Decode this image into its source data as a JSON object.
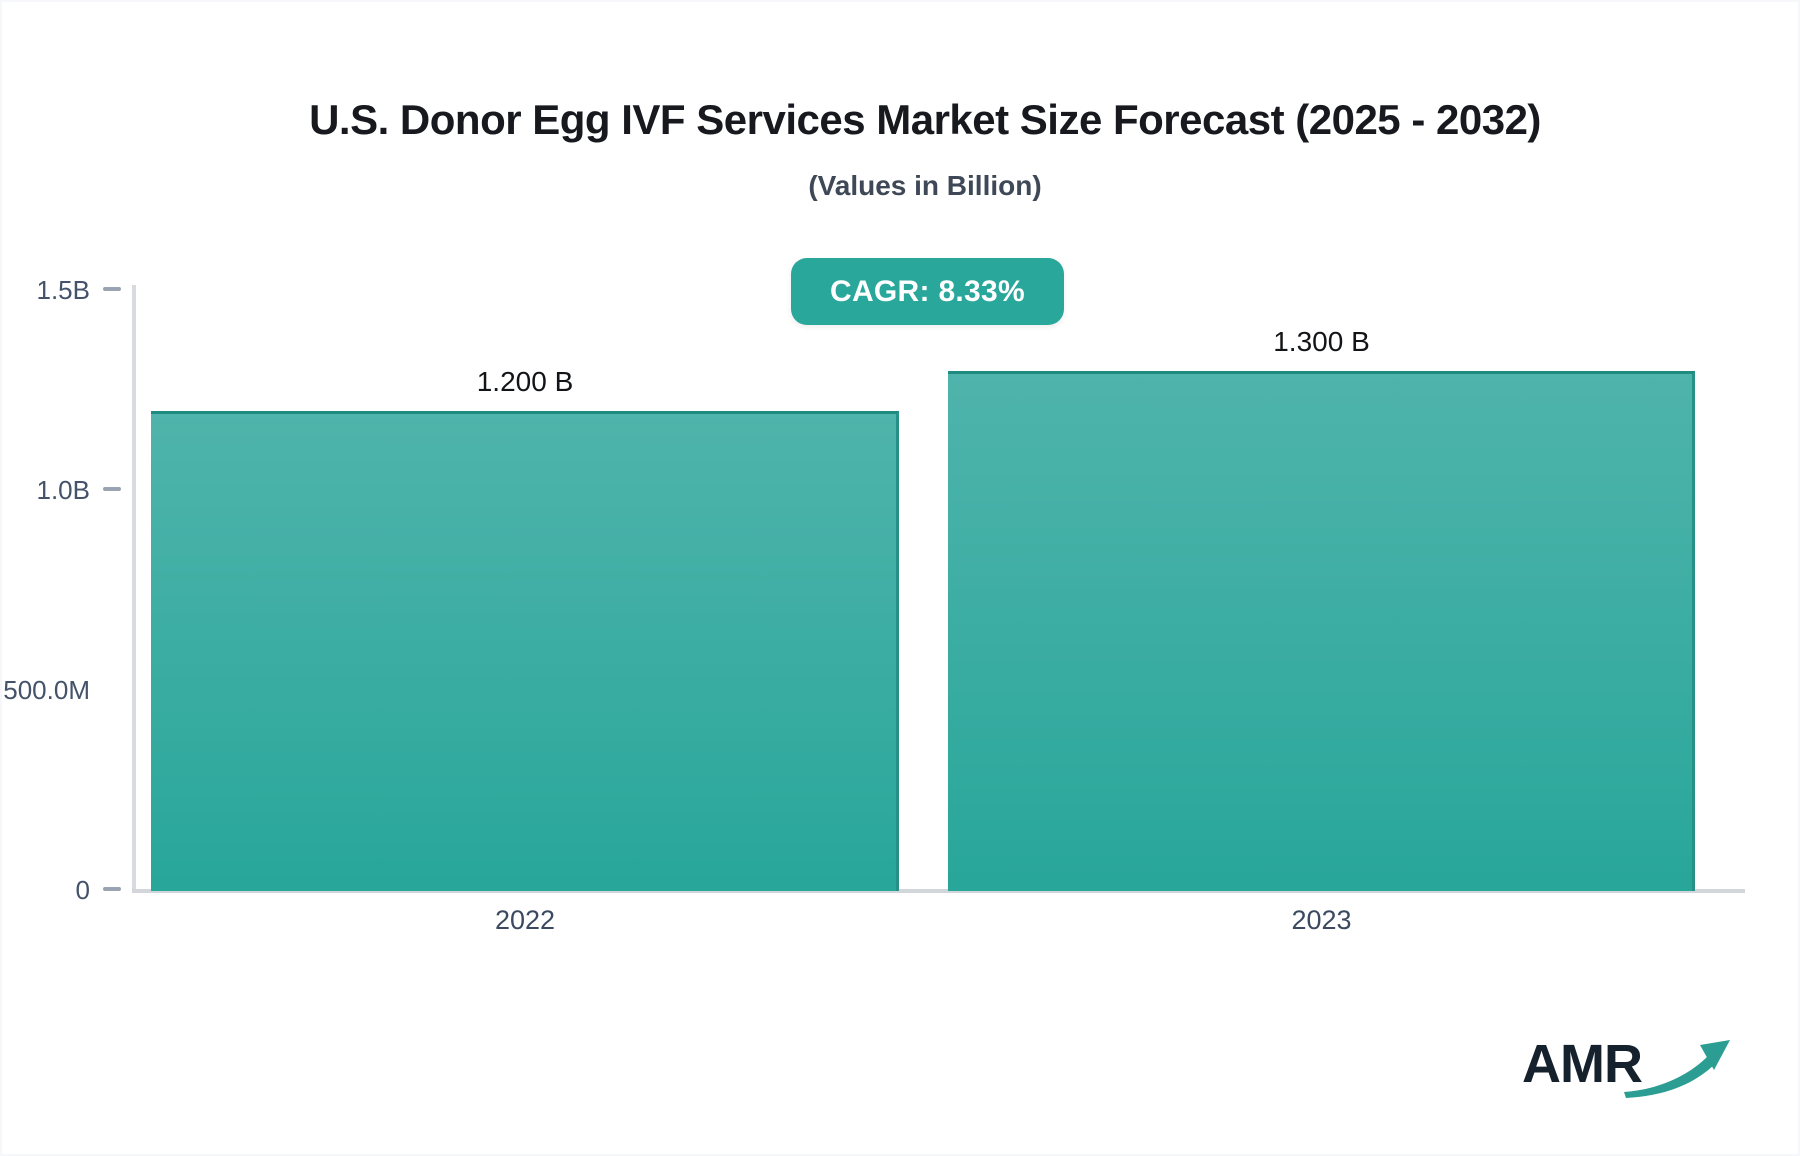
{
  "page": {
    "title": "U.S. Donor Egg IVF Services Market Size Forecast (2025 - 2032)",
    "subtitle": "(Values in Billion)",
    "cagr_badge": "CAGR: 8.33%",
    "brand": "AMR"
  },
  "colors": {
    "badge_bg": "#29a79b",
    "bar_gradient_top": "#4fb4ab",
    "bar_gradient_bottom": "#28a69a",
    "bar_border_dark": "#1f8b81",
    "axis_line": "#d5d9dd",
    "tick": "#9aa4b0",
    "axis_label": "#44536a",
    "category_label": "#3b4a61",
    "value_label": "#121417",
    "brand_navy": "#15222e",
    "brand_teal": "#2b9d92"
  },
  "chart_data": {
    "type": "bar",
    "title": "U.S. Donor Egg IVF Services Market Size Forecast (2025 - 2032)",
    "subtitle": "(Values in Billion)",
    "cagr_label": "CAGR: 8.33%",
    "categories": [
      "2022",
      "2023"
    ],
    "values": [
      1.2,
      1.3
    ],
    "value_unit": "B",
    "bar_labels": [
      "1.200 B",
      "1.300 B"
    ],
    "ylim": [
      0,
      1.5
    ],
    "yticks": [
      {
        "label": "0",
        "value": 0,
        "dash": true
      },
      {
        "label": "500.0M",
        "value": 0.5,
        "dash": false
      },
      {
        "label": "1.0B",
        "value": 1.0,
        "dash": true
      },
      {
        "label": "1.5B",
        "value": 1.5,
        "dash": true
      }
    ],
    "grid": false,
    "legend": false
  }
}
